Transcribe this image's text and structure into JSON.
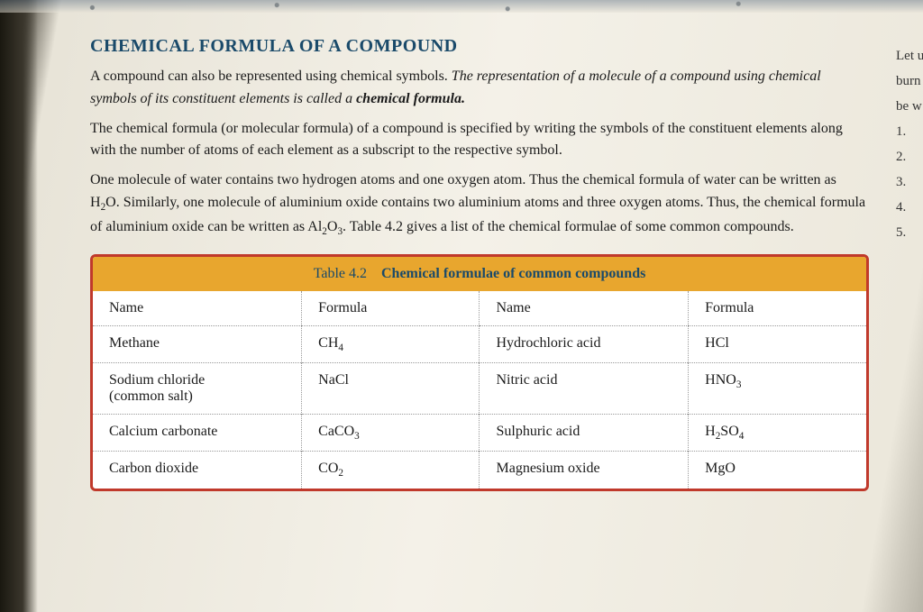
{
  "heading": "CHEMICAL FORMULA OF A COMPOUND",
  "para1_a": "A compound can also be represented using chemical symbols. ",
  "para1_b": "The representation of a molecule of a compound using chemical symbols of its constituent elements is called a ",
  "para1_c": "chemical formula.",
  "para2": "The chemical formula (or molecular formula) of a compound is specified by writing the symbols of the constituent elements along with the number of atoms of each element as a subscript to the respective symbol.",
  "para3_a": "One molecule of water contains two hydrogen atoms and one oxygen atom. Thus the chemical formula of water can be written as H",
  "para3_b": "O. Similarly, one molecule of aluminium oxide contains two aluminium atoms and three oxygen atoms. Thus, the chemical formula of aluminium oxide can be written as Al",
  "para3_c": "O",
  "para3_d": ". Table 4.2 gives a list of the chemical formulae of some common compounds.",
  "table_label": "Table 4.2",
  "table_caption": "Chemical formulae of common compounds",
  "columns": [
    "Name",
    "Formula",
    "Name",
    "Formula"
  ],
  "rows": [
    {
      "n1": "Methane",
      "f1": "CH",
      "s1": "4",
      "n2": "Hydrochloric acid",
      "f2": "HCl",
      "s2": ""
    },
    {
      "n1": "Sodium chloride (common salt)",
      "f1": "NaCl",
      "s1": "",
      "n2": "Nitric acid",
      "f2": "HNO",
      "s2": "3"
    },
    {
      "n1": "Calcium carbonate",
      "f1": "CaCO",
      "s1": "3",
      "n2": "Sulphuric acid",
      "f2a": "H",
      "f2asub": "2",
      "f2b": "SO",
      "s2": "4"
    },
    {
      "n1": "Carbon dioxide",
      "f1": "CO",
      "s1": "2",
      "n2": "Magnesium oxide",
      "f2": "MgO",
      "s2": ""
    }
  ],
  "side": [
    "Let u",
    "burn",
    "be w",
    "1.",
    "2.",
    "3.",
    "4.",
    "5."
  ],
  "colors": {
    "heading": "#1a4a6a",
    "table_border": "#c0392b",
    "table_title_bg": "#e8a62e"
  }
}
